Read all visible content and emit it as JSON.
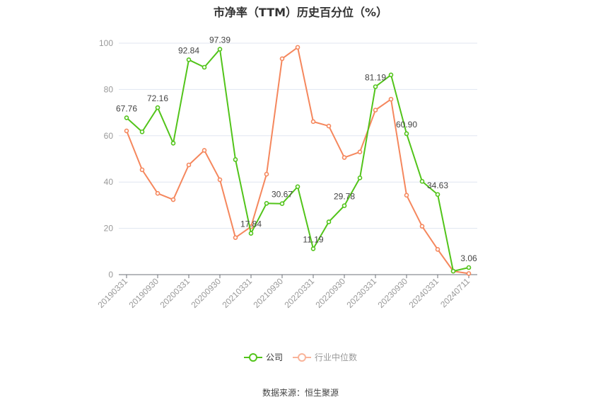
{
  "chart_data": {
    "type": "line",
    "title": "市净率（TTM）历史百分位（%）",
    "xlabel": "",
    "ylabel": "",
    "ylim": [
      0,
      100
    ],
    "yticks": [
      0,
      20,
      40,
      60,
      80,
      100
    ],
    "grid": true,
    "legend_position": "bottom",
    "x_tick_labels": [
      "20190331",
      "20190930",
      "20200331",
      "20200930",
      "20210331",
      "20210930",
      "20220331",
      "20220930",
      "20230331",
      "20230930",
      "20240331",
      "20240711"
    ],
    "x": [
      "20190331",
      "20190630",
      "20190930",
      "20191231",
      "20200331",
      "20200630",
      "20200930",
      "20201231",
      "20210331",
      "20210630",
      "20210930",
      "20211231",
      "20220331",
      "20220630",
      "20220930",
      "20221231",
      "20230331",
      "20230630",
      "20230930",
      "20231231",
      "20240331",
      "20240630",
      "20240711"
    ],
    "series": [
      {
        "name": "公司",
        "color": "#52c41a",
        "values": [
          67.76,
          61.7,
          72.16,
          56.8,
          92.84,
          89.6,
          97.39,
          49.7,
          17.84,
          30.8,
          30.67,
          38.0,
          11.19,
          22.8,
          29.78,
          41.8,
          81.19,
          86.3,
          60.9,
          40.3,
          34.63,
          1.5,
          3.06
        ],
        "labeled_points": {
          "0": "67.76",
          "2": "72.16",
          "4": "92.84",
          "6": "97.39",
          "8": "17.84",
          "10": "30.67",
          "12": "11.19",
          "14": "29.78",
          "16": "81.19",
          "18": "60.90",
          "20": "34.63",
          "22": "3.06"
        }
      },
      {
        "name": "行业中位数",
        "color": "#f5875d",
        "values": [
          62.1,
          45.3,
          35.1,
          32.4,
          47.4,
          53.7,
          41.0,
          16.0,
          20.7,
          43.4,
          93.3,
          98.2,
          66.1,
          64.2,
          50.6,
          53.0,
          71.1,
          75.8,
          34.3,
          20.9,
          10.9,
          1.5,
          0.5
        ]
      }
    ]
  },
  "title": "市净率（TTM）历史百分位（%）",
  "legend": {
    "company": "公司",
    "industry": "行业中位数"
  },
  "source": "数据来源：恒生聚源"
}
